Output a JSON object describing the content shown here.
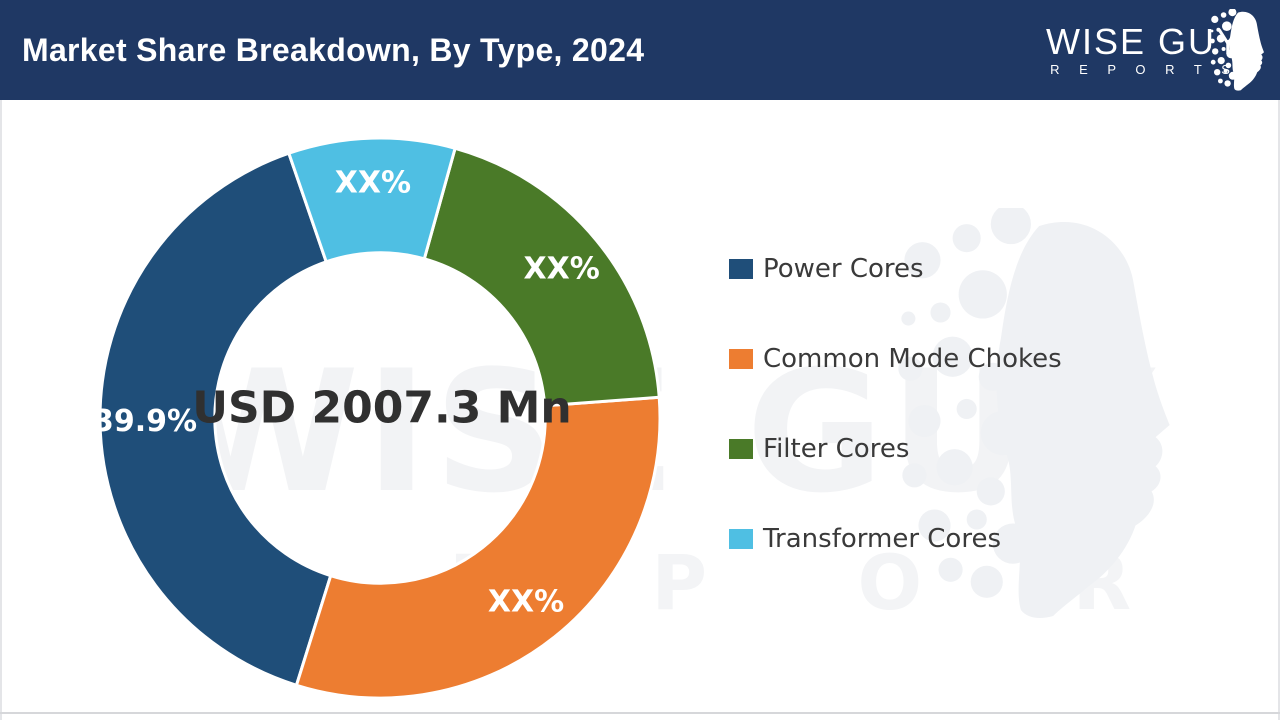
{
  "header": {
    "title": "Market Share Breakdown, By Type, 2024",
    "bg_color": "#1F3864",
    "logo": {
      "line1": "WISE GUY",
      "line2": "R E P O R T S"
    }
  },
  "watermark": {
    "line1": "WISE GUY",
    "line2": "R E P O R T S"
  },
  "chart_data": {
    "type": "pie",
    "subtype": "donut",
    "title": "Market Share Breakdown, By Type, 2024",
    "center_label": "USD 2007.3 Mn",
    "start_angle_deg": 109,
    "direction": "counterclockwise",
    "donut_hole_ratio": 0.59,
    "legend_position": "right",
    "segments": [
      {
        "label": "Power Cores",
        "display_value": "39.9%",
        "value_pct": 39.9,
        "color": "#1F4E79"
      },
      {
        "label": "Common Mode Chokes",
        "display_value": "XX%",
        "value_pct": 31.0,
        "color": "#ED7D31"
      },
      {
        "label": "Filter Cores",
        "display_value": "XX%",
        "value_pct": 19.5,
        "color": "#4A7A28"
      },
      {
        "label": "Transformer Cores",
        "display_value": "XX%",
        "value_pct": 9.6,
        "color": "#4FBFE3"
      }
    ]
  }
}
